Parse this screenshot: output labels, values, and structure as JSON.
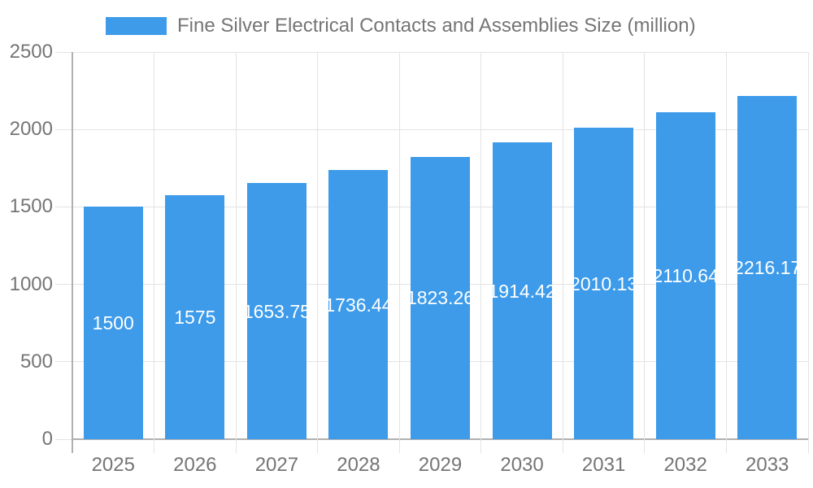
{
  "chart_data": {
    "type": "bar",
    "title": "Fine Silver Electrical Contacts and Assemblies Size (million)",
    "categories": [
      "2025",
      "2026",
      "2027",
      "2028",
      "2029",
      "2030",
      "2031",
      "2032",
      "2033"
    ],
    "values": [
      1500,
      1575,
      1653.75,
      1736.44,
      1823.26,
      1914.42,
      2010.13,
      2110.64,
      2216.17
    ],
    "value_labels": [
      "1500",
      "1575",
      "1653.75",
      "1736.44",
      "1823.26",
      "1914.42",
      "2010.13",
      "2110.64",
      "2216.17"
    ],
    "xlabel": "",
    "ylabel": "",
    "ylim": [
      0,
      2500
    ],
    "y_ticks": [
      0,
      500,
      1000,
      1500,
      2000,
      2500
    ],
    "y_tick_labels": [
      "0",
      "500",
      "1000",
      "1500",
      "2000",
      "2500"
    ],
    "grid": true,
    "legend_position": "top",
    "colors": {
      "bar": "#3D9BEA",
      "value_label": "#FFFFFF",
      "axis_text": "#757575",
      "title_text": "#757575",
      "gridline": "#E3E3E3",
      "axis_line": "#B0B0B0",
      "background": "#FFFFFF"
    }
  }
}
